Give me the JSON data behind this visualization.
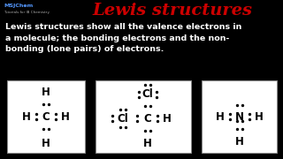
{
  "title": "Lewis structures",
  "title_color": "#cc0000",
  "bg_color": "#000000",
  "text_color": "#ffffff",
  "box_color": "#ffffff",
  "watermark_line1": "MSJChem",
  "watermark_line2": "Tutorials for IB Chemistry",
  "watermark_color": "#5599ff",
  "watermark_subcolor": "#aaaaaa",
  "description": "Lewis structures show all the valence electrons in\na molecule; the bonding electrons and the non-\nbonding (lone pairs) of electrons.",
  "desc_fontsize": 6.8,
  "title_fontsize": 14,
  "mol_fontsize": 8.5
}
